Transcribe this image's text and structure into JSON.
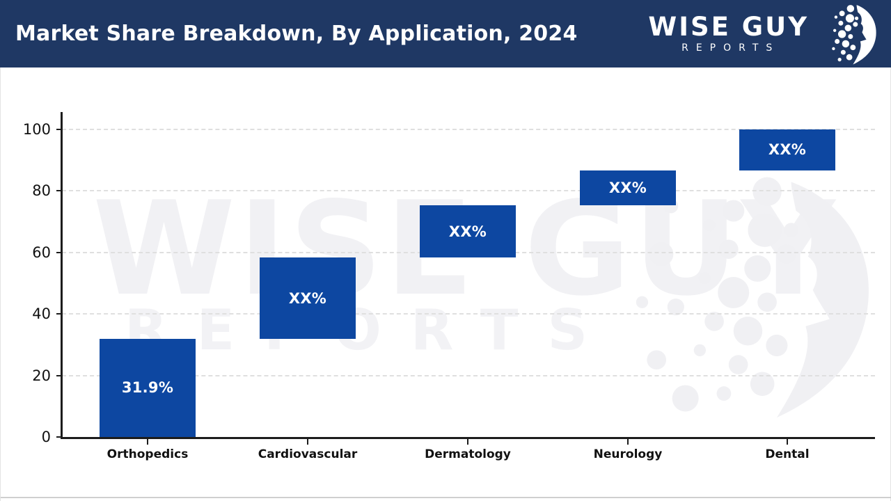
{
  "header": {
    "title": "Market Share Breakdown, By Application, 2024",
    "bg_color": "#1f3864",
    "logo": {
      "line1": "WISE GUY",
      "line2": "REPORTS"
    }
  },
  "watermark": {
    "line1": "WISE GUY",
    "line2": "REPORTS"
  },
  "chart_data": {
    "type": "bar",
    "subtype": "waterfall",
    "title": "Market Share Breakdown, By Application, 2024",
    "categories": [
      "Orthopedics",
      "Cardiovascular",
      "Dermatology",
      "Neurology",
      "Dental"
    ],
    "segments": [
      {
        "category": "Orthopedics",
        "start": 0,
        "end": 31.9,
        "label": "31.9%"
      },
      {
        "category": "Cardiovascular",
        "start": 31.9,
        "end": 58.2,
        "label": "XX%"
      },
      {
        "category": "Dermatology",
        "start": 58.2,
        "end": 75.3,
        "label": "XX%"
      },
      {
        "category": "Neurology",
        "start": 75.3,
        "end": 86.6,
        "label": "XX%"
      },
      {
        "category": "Dental",
        "start": 86.6,
        "end": 100,
        "label": "XX%"
      }
    ],
    "y_ticks": [
      0,
      20,
      40,
      60,
      80,
      100
    ],
    "ylim": [
      0,
      100
    ],
    "xlabel": "",
    "ylabel": "",
    "legend": "none",
    "grid": "horizontal-dashed",
    "bar_color": "#0d47a1",
    "axis_color": "#1c1c1c",
    "grid_color": "#dfdfdf",
    "value_label_color": "#ffffff"
  }
}
